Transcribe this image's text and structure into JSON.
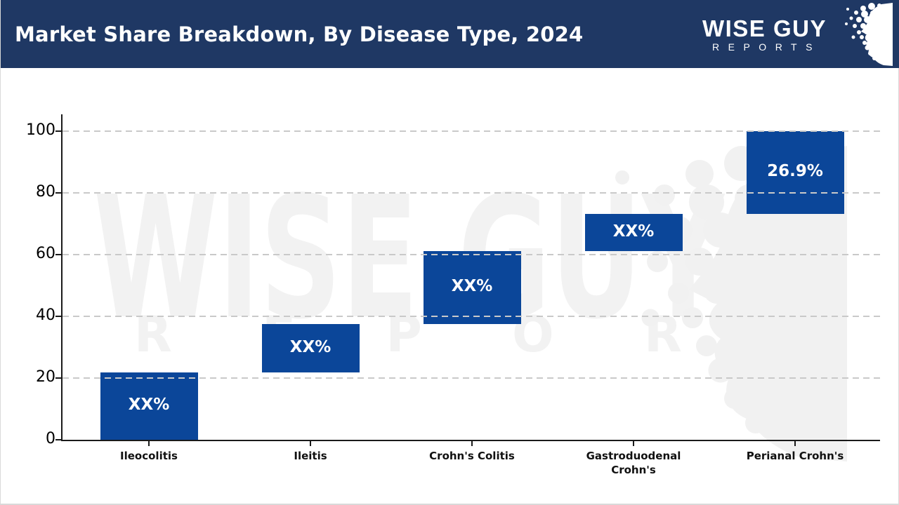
{
  "header": {
    "title": "Market Share Breakdown, By Disease Type, 2024",
    "bg_color": "#1f3864",
    "logo": {
      "wordmark": "WISE GUY",
      "subtitle": "REPORTS"
    }
  },
  "watermark": {
    "line1": "WISE GUY",
    "line2": "R E P O R T S"
  },
  "chart_data": {
    "type": "bar",
    "variant": "waterfall",
    "title": "Market Share Breakdown, By Disease Type, 2024",
    "categories": [
      "Ileocolitis",
      "Ileitis",
      "Crohn's Colitis",
      "Gastroduodenal Crohn's",
      "Perianal Crohn's"
    ],
    "series": [
      {
        "name": "Market share (%)",
        "segments": [
          {
            "start": 0,
            "end": 21.8,
            "label": "XX%"
          },
          {
            "start": 21.8,
            "end": 37.5,
            "label": "XX%"
          },
          {
            "start": 37.5,
            "end": 61.1,
            "label": "XX%"
          },
          {
            "start": 61.1,
            "end": 73.1,
            "label": "XX%"
          },
          {
            "start": 73.1,
            "end": 100,
            "label": "26.9%"
          }
        ]
      }
    ],
    "xlabel": "",
    "ylabel": "",
    "ylim": [
      0,
      100
    ],
    "yticks": [
      0,
      20,
      40,
      60,
      80,
      100
    ],
    "grid": "horizontal-dashed",
    "legend": "none",
    "bar_color": "#0b4699",
    "bar_label_color": "#ffffff"
  }
}
